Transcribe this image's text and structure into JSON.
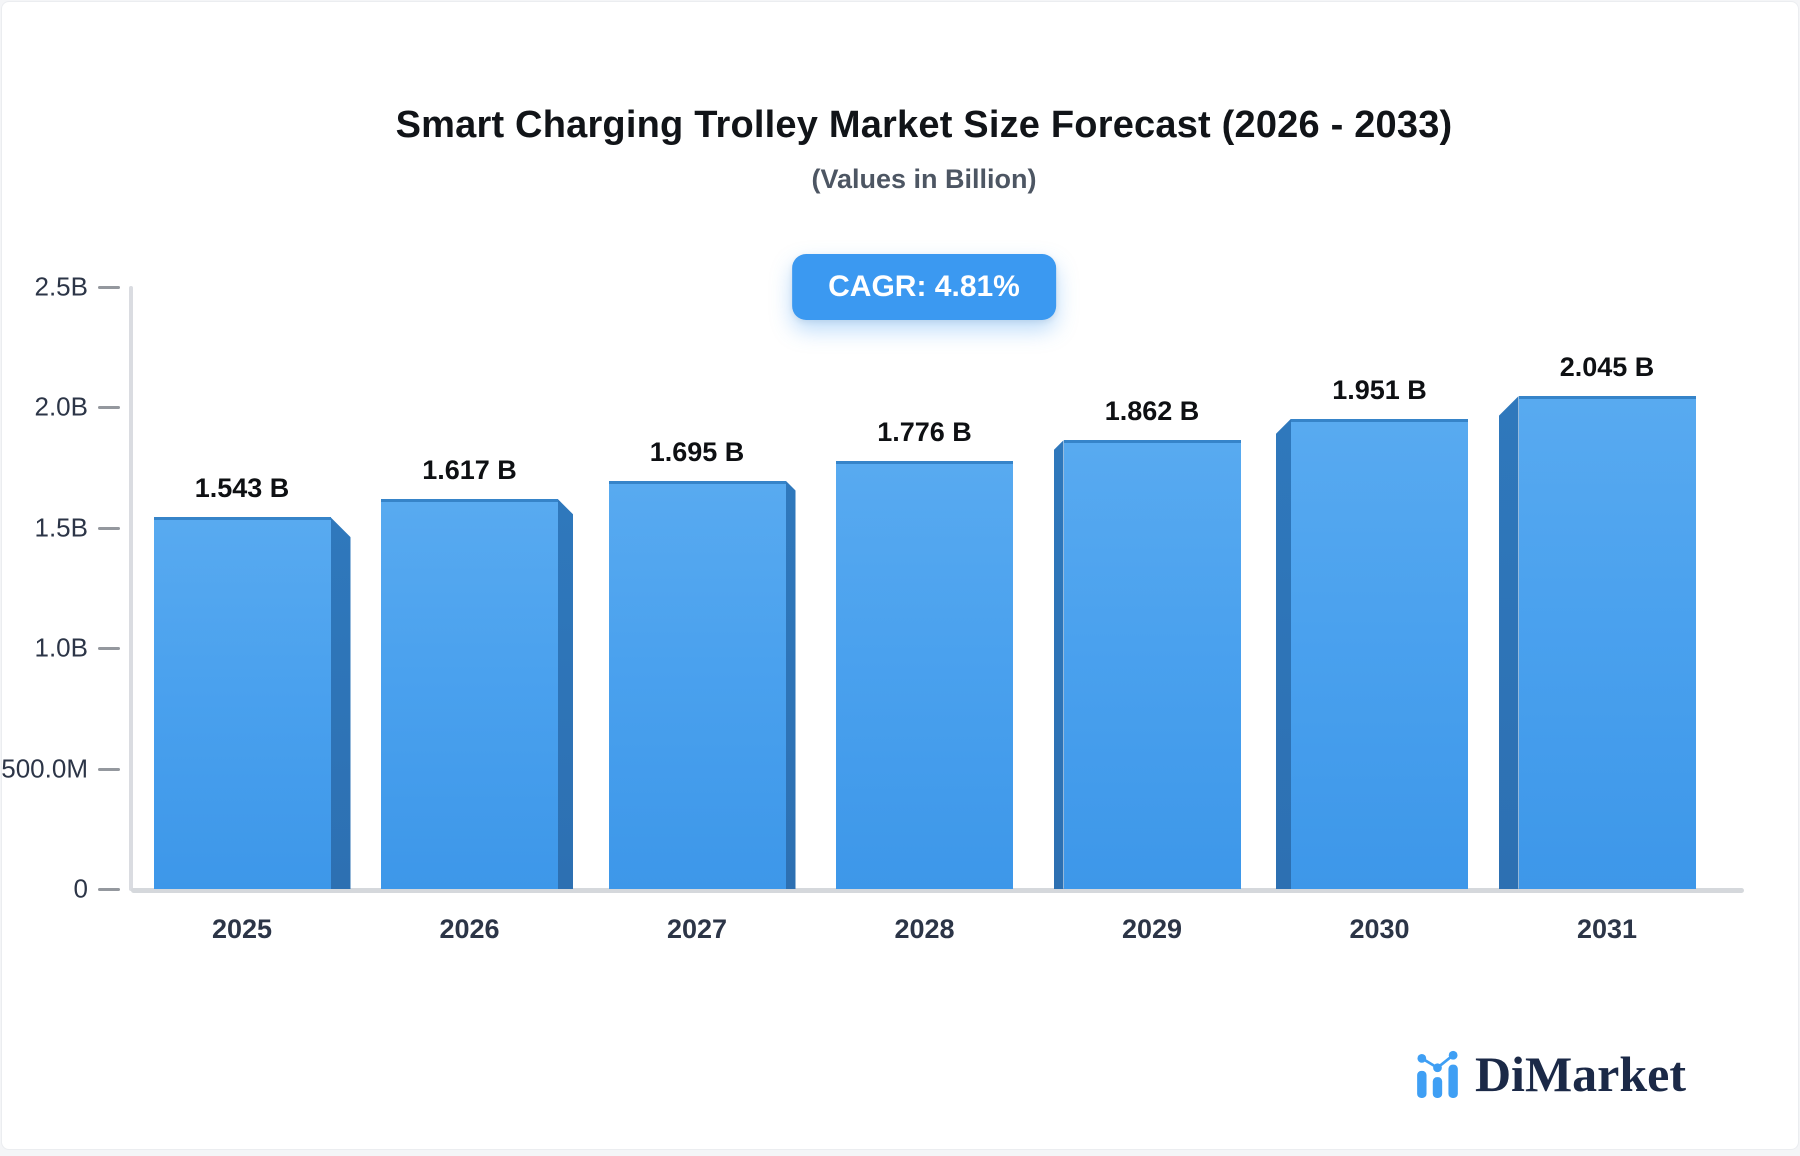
{
  "chart": {
    "title": "Smart Charging Trolley Market Size Forecast (2026 - 2033)",
    "subtitle": "(Values in Billion)",
    "cagr_label": "CAGR: 4.81%"
  },
  "chart_data": {
    "type": "bar",
    "title": "Smart Charging Trolley Market Size Forecast (2026 - 2033)",
    "subtitle": "(Values in Billion)",
    "cagr": "4.81%",
    "categories": [
      "2025",
      "2026",
      "2027",
      "2028",
      "2029",
      "2030",
      "2031"
    ],
    "values": [
      1.543,
      1.617,
      1.695,
      1.776,
      1.862,
      1.951,
      2.045
    ],
    "value_labels": [
      "1.543 B",
      "1.617 B",
      "1.695 B",
      "1.776 B",
      "1.862 B",
      "1.951 B",
      "2.045 B"
    ],
    "y_ticks": [
      {
        "label": "2.5B",
        "value": 2.5
      },
      {
        "label": "2.0B",
        "value": 2.0
      },
      {
        "label": "1.5B",
        "value": 1.5
      },
      {
        "label": "1.0B",
        "value": 1.0
      },
      {
        "label": "500.0M",
        "value": 0.5
      },
      {
        "label": "0",
        "value": 0
      }
    ],
    "ylim": [
      0,
      2.5
    ],
    "xlabel": "",
    "ylabel": "",
    "grid": false,
    "legend": false,
    "style": "3d-perspective-bars",
    "colors": {
      "bar_front_top": "#58aaf0",
      "bar_front_bottom": "#3d97e9",
      "bar_top_edge": "#3684c9",
      "bar_side": "#2e73b6",
      "axis_line": "#d5d8dc",
      "tick": "#94989e",
      "value_label": "#0e1013",
      "axis_label": "#2c3547",
      "badge_bg": "#3b99f1",
      "badge_text": "#ffffff"
    }
  },
  "logo": {
    "text": "DiMarket",
    "icon": "mini-bar-line-chart-icon",
    "text_color": "#1b2947",
    "icon_color": "#3f9ff4"
  }
}
